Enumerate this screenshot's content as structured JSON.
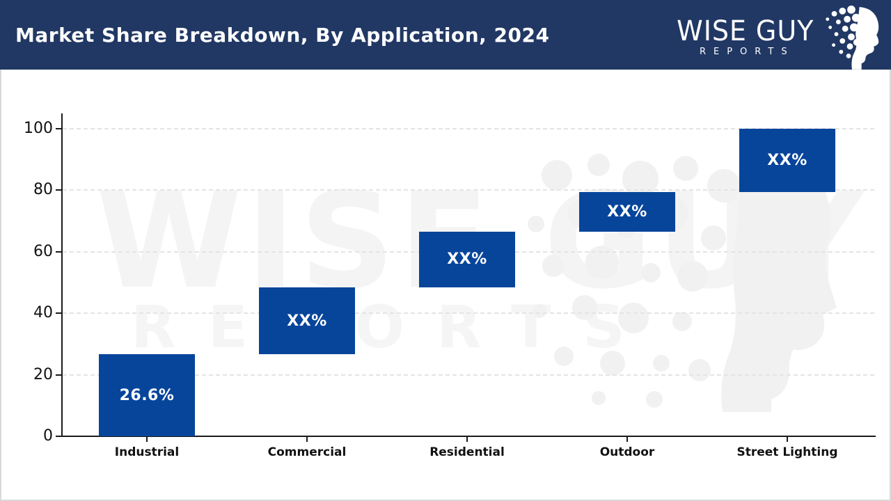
{
  "header": {
    "title": "Market Share Breakdown, By Application, 2024",
    "logo": {
      "line1": "WISE GUY",
      "line2": "REPORTS"
    }
  },
  "watermark": {
    "line1": "WISE GUY",
    "line2": "REPORTS"
  },
  "colors": {
    "header_bg": "#213864",
    "bar": "#07459b",
    "bar_label": "#ffffff",
    "grid": "#e4e4e4",
    "axis": "#1a1a1a",
    "frame": "#d9d9d9",
    "watermark": "#f4f4f4"
  },
  "chart_data": {
    "type": "bar",
    "subtype": "waterfall",
    "title": "Market Share Breakdown, By Application, 2024",
    "xlabel": "",
    "ylabel": "",
    "ylim": [
      0,
      100
    ],
    "yticks": [
      0,
      20,
      40,
      60,
      80,
      100
    ],
    "grid": "dashed-horizontal",
    "categories": [
      "Industrial",
      "Commercial",
      "Residential",
      "Outdoor",
      "Street Lighting"
    ],
    "segments": [
      {
        "category": "Industrial",
        "start": 0,
        "end": 26.6,
        "size": 26.6,
        "label": "26.6%"
      },
      {
        "category": "Commercial",
        "start": 26.6,
        "end": 48.5,
        "size": 21.9,
        "label": "XX%"
      },
      {
        "category": "Residential",
        "start": 48.5,
        "end": 66.5,
        "size": 18.0,
        "label": "XX%"
      },
      {
        "category": "Outdoor",
        "start": 66.5,
        "end": 79.3,
        "size": 12.8,
        "label": "XX%"
      },
      {
        "category": "Street Lighting",
        "start": 79.3,
        "end": 100,
        "size": 20.7,
        "label": "XX%"
      }
    ]
  }
}
